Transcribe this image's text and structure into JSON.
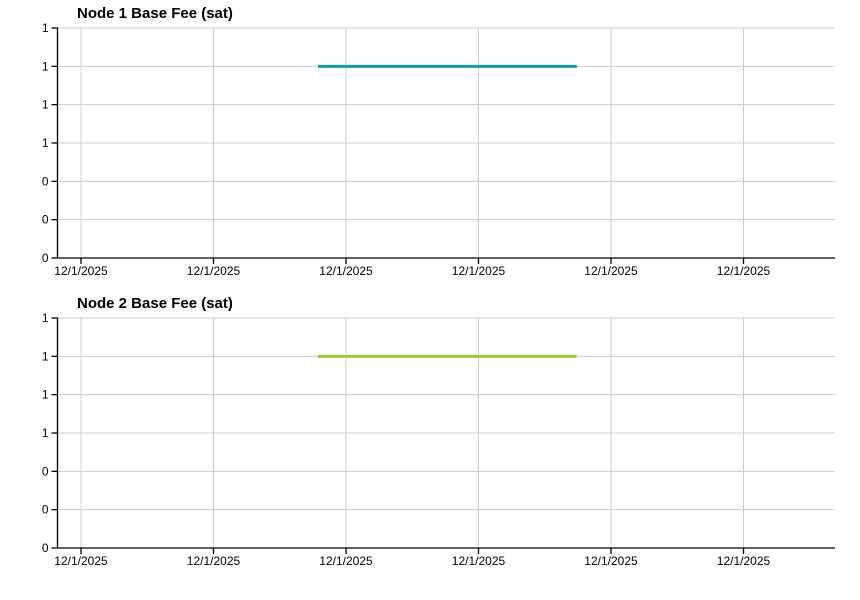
{
  "page": {
    "background_color": "#ffffff"
  },
  "chart_data": [
    {
      "type": "line",
      "title": "Node 1 Base Fee (sat)",
      "xlabel": "",
      "ylabel": "",
      "grid": true,
      "legend": false,
      "x_tick_labels": [
        "12/1/2025",
        "12/1/2025",
        "12/1/2025",
        "12/1/2025",
        "12/1/2025",
        "12/1/2025"
      ],
      "y_tick_labels_top_to_bottom": [
        "1",
        "1",
        "1",
        "1",
        "0",
        "0",
        "0"
      ],
      "y_axis": {
        "min": 0,
        "max": 1.2,
        "step": 0.2,
        "labels_rounded_to_integer": true
      },
      "series": [
        {
          "name": "Node 1 base fee",
          "color": "#1B9AA1",
          "constant_value": 1,
          "x_start_frac": 0.335,
          "x_end_frac": 0.668
        }
      ]
    },
    {
      "type": "line",
      "title": "Node 2 Base Fee (sat)",
      "xlabel": "",
      "ylabel": "",
      "grid": true,
      "legend": false,
      "x_tick_labels": [
        "12/1/2025",
        "12/1/2025",
        "12/1/2025",
        "12/1/2025",
        "12/1/2025",
        "12/1/2025"
      ],
      "y_tick_labels_top_to_bottom": [
        "1",
        "1",
        "1",
        "1",
        "0",
        "0",
        "0"
      ],
      "y_axis": {
        "min": 0,
        "max": 1.2,
        "step": 0.2,
        "labels_rounded_to_integer": true
      },
      "series": [
        {
          "name": "Node 2 base fee",
          "color": "#9ACB3B",
          "constant_value": 1,
          "x_start_frac": 0.335,
          "x_end_frac": 0.668
        }
      ]
    }
  ]
}
